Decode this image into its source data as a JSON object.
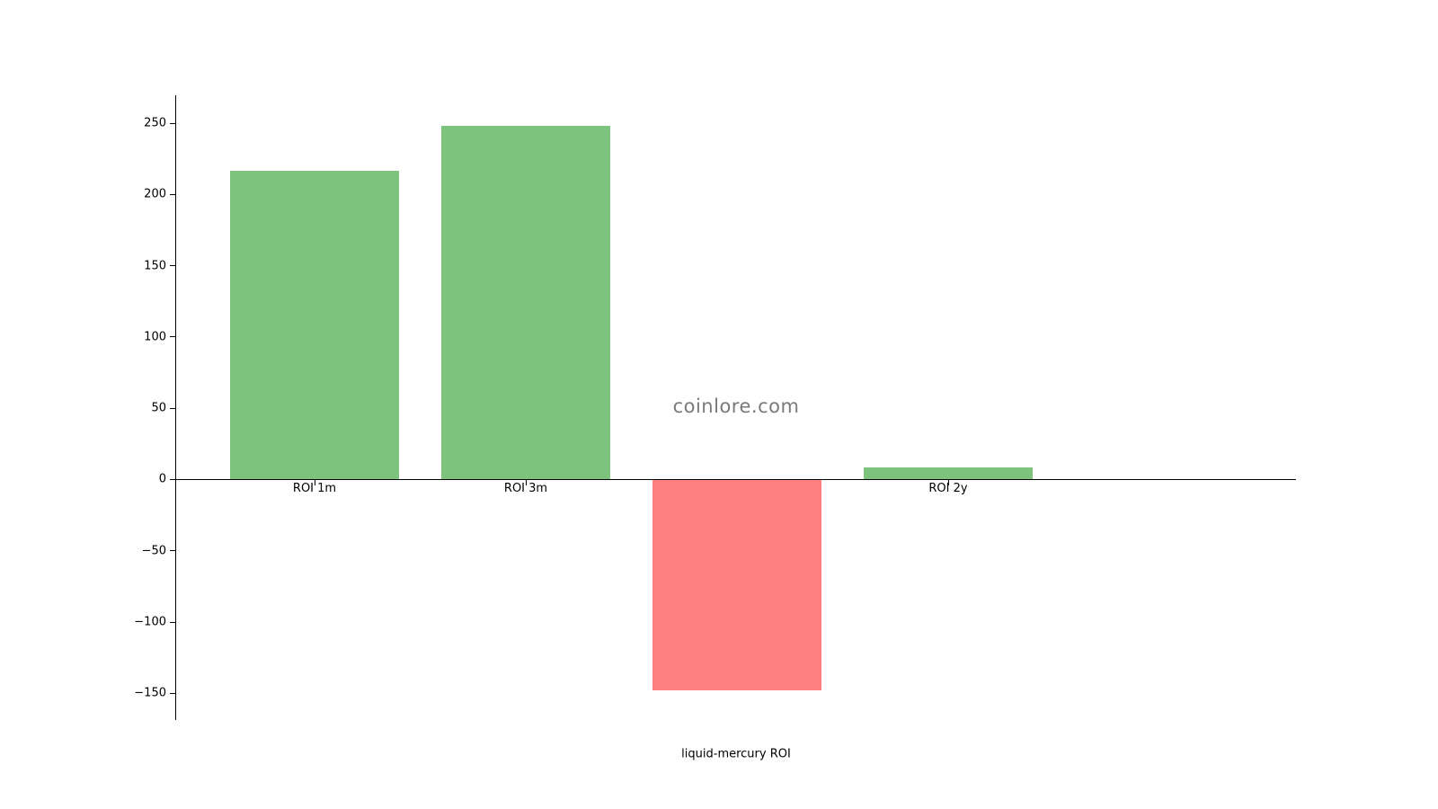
{
  "chart_data": {
    "type": "bar",
    "title": "",
    "xlabel": "liquid-mercury ROI",
    "ylabel": "",
    "watermark": "coinlore.com",
    "categories": [
      "ROI 1m",
      "ROI 3m",
      "",
      "ROI 2y"
    ],
    "values": [
      216,
      248,
      -148,
      8
    ],
    "bar_colors": [
      "#7dc27d",
      "#7dc27d",
      "#ff8080",
      "#7dc27d"
    ],
    "yticks": [
      250,
      200,
      150,
      100,
      50,
      0,
      -50,
      -100,
      -150
    ],
    "ytick_labels": [
      "250",
      "200",
      "150",
      "100",
      "50",
      "0",
      "−50",
      "−100",
      "−150"
    ],
    "ylim": [
      -169,
      268
    ],
    "grid": false,
    "legend": null,
    "colors": {
      "positive_bar": "#7dc27d",
      "negative_bar": "#ff8080",
      "axis": "#000000",
      "tick_text": "#000000",
      "watermark_text": "#7a7a7a",
      "background": "#ffffff"
    }
  }
}
